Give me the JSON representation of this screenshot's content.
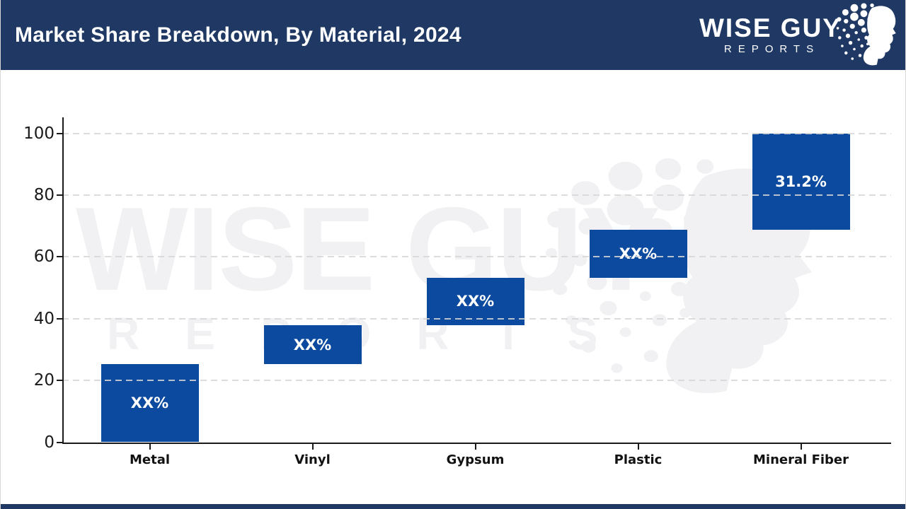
{
  "header": {
    "title": "Market Share Breakdown, By Material, 2024",
    "brand": {
      "line1": "WISE GUY",
      "line2": "REPORTS"
    }
  },
  "watermark": {
    "line1": "WISE GUY",
    "line2": "REPORTS"
  },
  "colors": {
    "header_bg": "#1f3864",
    "bar_blue": "#0b4a9e",
    "bar_label": "#ffffff",
    "grid": "#d6d6d6",
    "axis": "#1a1a1a",
    "watermark": "#f1f1f4"
  },
  "chart_data": {
    "type": "bar",
    "subtype": "waterfall",
    "title": "Market Share Breakdown, By Material, 2024",
    "xlabel": "",
    "ylabel": "",
    "ylim": [
      0,
      105
    ],
    "grid": "horizontal-dashed",
    "legend": "none",
    "y_ticks": [
      0,
      20,
      40,
      60,
      80,
      100
    ],
    "categories": [
      "Metal",
      "Vinyl",
      "Gypsum",
      "Plastic",
      "Mineral Fiber"
    ],
    "bars": [
      {
        "category": "Metal",
        "start": 0,
        "end": 25.3,
        "label": "XX%"
      },
      {
        "category": "Vinyl",
        "start": 25.3,
        "end": 37.8,
        "label": "XX%"
      },
      {
        "category": "Gypsum",
        "start": 37.8,
        "end": 53.3,
        "label": "XX%"
      },
      {
        "category": "Plastic",
        "start": 53.3,
        "end": 68.8,
        "label": "XX%"
      },
      {
        "category": "Mineral Fiber",
        "start": 68.8,
        "end": 100,
        "label": "31.2%"
      }
    ]
  }
}
